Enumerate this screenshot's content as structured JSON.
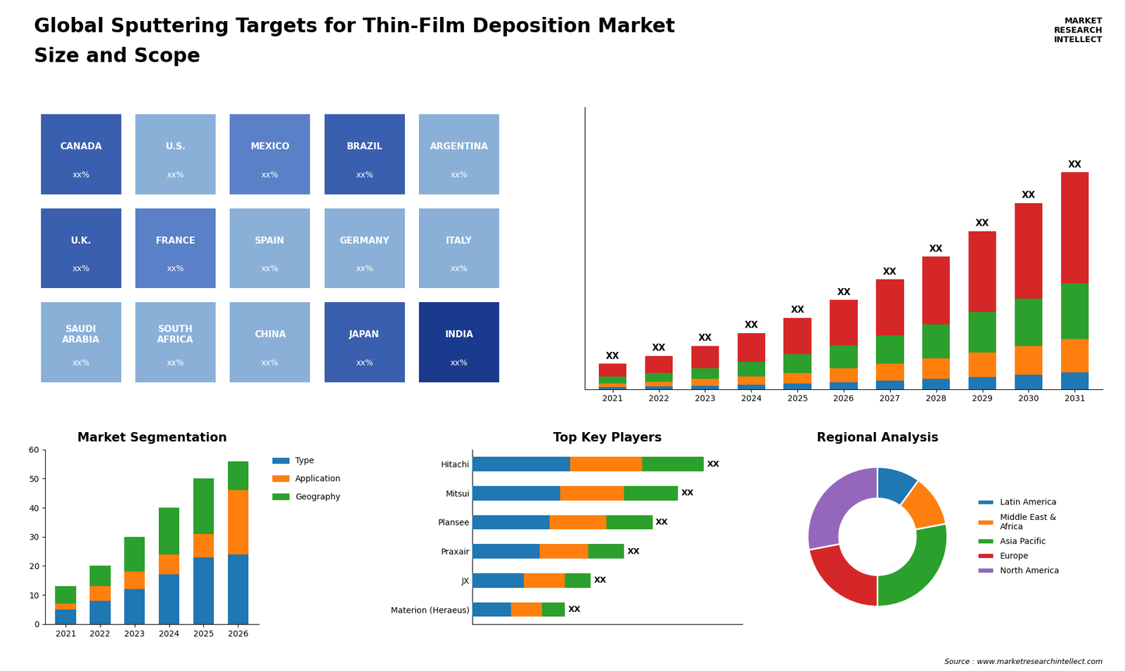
{
  "title": "Global Sputtering Targets for Thin-Film Deposition Market",
  "subtitle": "Size and Scope",
  "annotations": [
    "MARKET\nRESEARCH\nINTELLECT",
    "Source : www.marketresearchintellect.com"
  ],
  "chart_data": [
    {
      "type": "map",
      "categories": [
        "CANADA",
        "U.S.",
        "MEXICO",
        "BRAZIL",
        "ARGENTINA",
        "U.K.",
        "FRANCE",
        "SPAIN",
        "GERMANY",
        "ITALY",
        "SAUDI\nARABIA",
        "SOUTH\nAFRICA",
        "CHINA",
        "JAPAN",
        "INDIA"
      ],
      "colors": [
        "#3a5faf",
        "#8ab0d8",
        "#5a80c8",
        "#3a5faf",
        "#8ab0d8",
        "#3a5faf",
        "#5a80c8",
        "#8ab0d8",
        "#8ab0d8",
        "#8ab0d8",
        "#8ab0d8",
        "#8ab0d8",
        "#8ab0d8",
        "#3a5faf",
        "#1a3a8e"
      ],
      "annotations": [
        "xx%",
        "xx%",
        "xx%",
        "xx%",
        "xx%",
        "xx%",
        "xx%",
        "xx%",
        "xx%",
        "xx%",
        "xx%",
        "xx%",
        "xx%",
        "xx%",
        "xx%"
      ],
      "tick_labels": false
    },
    {
      "type": "bar",
      "stacked": true,
      "categories": [
        "2021",
        "2022",
        "2023",
        "2024",
        "2025",
        "2026",
        "2027",
        "2028",
        "2029",
        "2030",
        "2031"
      ],
      "series": [
        {
          "values": [
            0.15,
            0.2,
            0.26,
            0.33,
            0.42,
            0.53,
            0.65,
            0.78,
            0.93,
            1.09,
            1.28
          ]
        },
        {
          "values": [
            0.3,
            0.39,
            0.51,
            0.66,
            0.84,
            1.05,
            1.29,
            1.56,
            1.86,
            2.19,
            2.55
          ]
        },
        {
          "values": [
            0.5,
            0.65,
            0.85,
            1.1,
            1.4,
            1.75,
            2.15,
            2.6,
            3.1,
            3.65,
            4.25
          ]
        },
        {
          "values": [
            1.0,
            1.3,
            1.7,
            2.2,
            2.8,
            3.5,
            4.3,
            5.2,
            6.2,
            7.3,
            8.5
          ]
        }
      ],
      "annotations": [
        "XX",
        "XX",
        "XX",
        "XX",
        "XX",
        "XX",
        "XX",
        "XX",
        "XX",
        "XX",
        "XX"
      ],
      "ylim": [
        0,
        21.554
      ],
      "tick_labels": "x"
    },
    {
      "type": "bar",
      "stacked": true,
      "title": "Market Segmentation",
      "categories": [
        "2021",
        "2022",
        "2023",
        "2024",
        "2025",
        "2026"
      ],
      "series": [
        {
          "name": "Type",
          "values": [
            5,
            8,
            12,
            17,
            23,
            24
          ]
        },
        {
          "name": "Application",
          "values": [
            2,
            5,
            6,
            7,
            8,
            22
          ]
        },
        {
          "name": "Geography",
          "values": [
            6,
            7,
            12,
            16,
            19,
            10
          ]
        }
      ],
      "ylim": [
        0,
        60
      ],
      "yticks": [
        0,
        10,
        20,
        30,
        40,
        50,
        60
      ],
      "legend": "upper left"
    },
    {
      "type": "bar",
      "stacked": true,
      "orientation": "horizontal",
      "title": "Top Key Players",
      "categories": [
        "Hitachi",
        "Mitsui",
        "Plansee",
        "Praxair",
        "JX",
        "Materion (Heraeus)"
      ],
      "series": [
        {
          "values": [
            0.38,
            0.34,
            0.3,
            0.26,
            0.2,
            0.15
          ]
        },
        {
          "values": [
            0.28,
            0.25,
            0.22,
            0.19,
            0.16,
            0.12
          ]
        },
        {
          "values": [
            0.24,
            0.21,
            0.18,
            0.14,
            0.1,
            0.09
          ]
        }
      ],
      "annotations": [
        "XX",
        "XX",
        "XX",
        "XX",
        "XX",
        "XX"
      ],
      "xlim": [
        0,
        1.05
      ],
      "tick_labels": "y"
    },
    {
      "type": "pie",
      "title": "Regional Analysis",
      "categories": [
        "Latin America",
        "Middle East &\nAfrica",
        "Asia Pacific",
        "Europe",
        "North America"
      ],
      "values": [
        10,
        12,
        28,
        22,
        28
      ],
      "legend": "center left"
    }
  ]
}
